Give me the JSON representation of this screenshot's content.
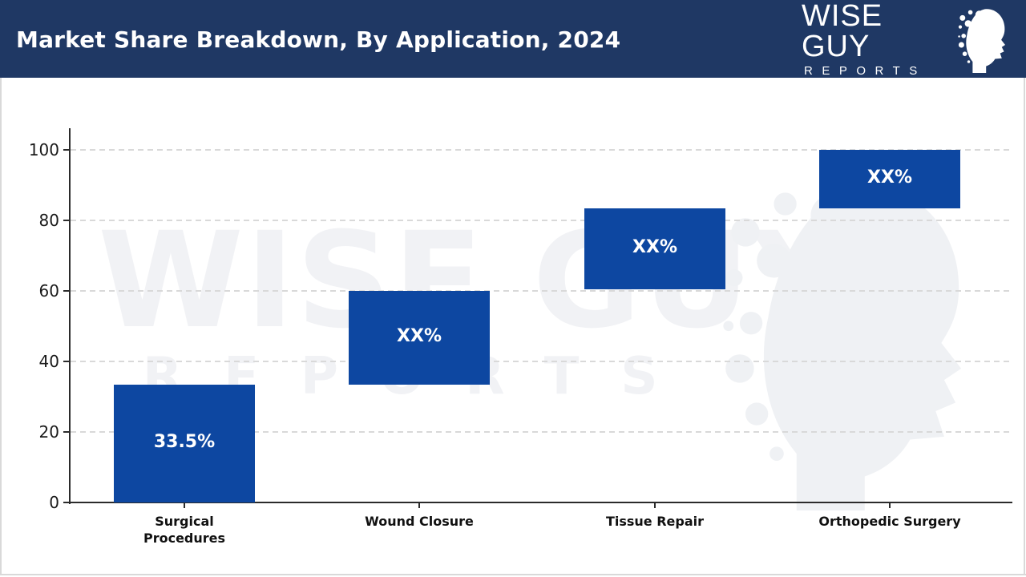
{
  "header": {
    "title": "Market Share Breakdown, By Application, 2024",
    "background_color": "#1f3864",
    "logo": {
      "brand_line1": "WISE GUY",
      "brand_line2": "REPORTS",
      "icon": "dotted-head-profile"
    }
  },
  "watermark": {
    "line1": "WISE GUY",
    "line2": "REPORTS",
    "icon": "dotted-head-profile",
    "color": "#f1f2f5"
  },
  "chart_data": {
    "type": "bar",
    "subtype": "waterfall",
    "title": "Market Share Breakdown, By Application, 2024",
    "categories": [
      "Surgical Procedures",
      "Wound Closure",
      "Tissue Repair",
      "Orthopedic Surgery"
    ],
    "tick_labels": [
      "Surgical\nProcedures",
      "Wound Closure",
      "Tissue Repair",
      "Orthopedic Surgery"
    ],
    "segments": [
      {
        "category": "Surgical Procedures",
        "start": 0,
        "end": 33.5,
        "label": "33.5%"
      },
      {
        "category": "Wound Closure",
        "start": 33.5,
        "end": 60,
        "label": "XX%"
      },
      {
        "category": "Tissue Repair",
        "start": 60.5,
        "end": 83.5,
        "label": "XX%"
      },
      {
        "category": "Orthopedic Surgery",
        "start": 83.5,
        "end": 100,
        "label": "XX%"
      }
    ],
    "values_estimated": [
      33.5,
      26.5,
      23,
      16.5
    ],
    "labels": [
      "33.5%",
      "XX%",
      "XX%",
      "XX%"
    ],
    "xlabel": "",
    "ylabel": "",
    "ylim": [
      0,
      100
    ],
    "yticks": [
      0,
      20,
      40,
      60,
      80,
      100
    ],
    "grid": "horizontal-dashed",
    "legend": "none",
    "bar_color": "#0d47a1",
    "bar_label_color": "#ffffff",
    "axis_color": "#2b2b2b",
    "gridline_color": "#d9d9d9"
  }
}
